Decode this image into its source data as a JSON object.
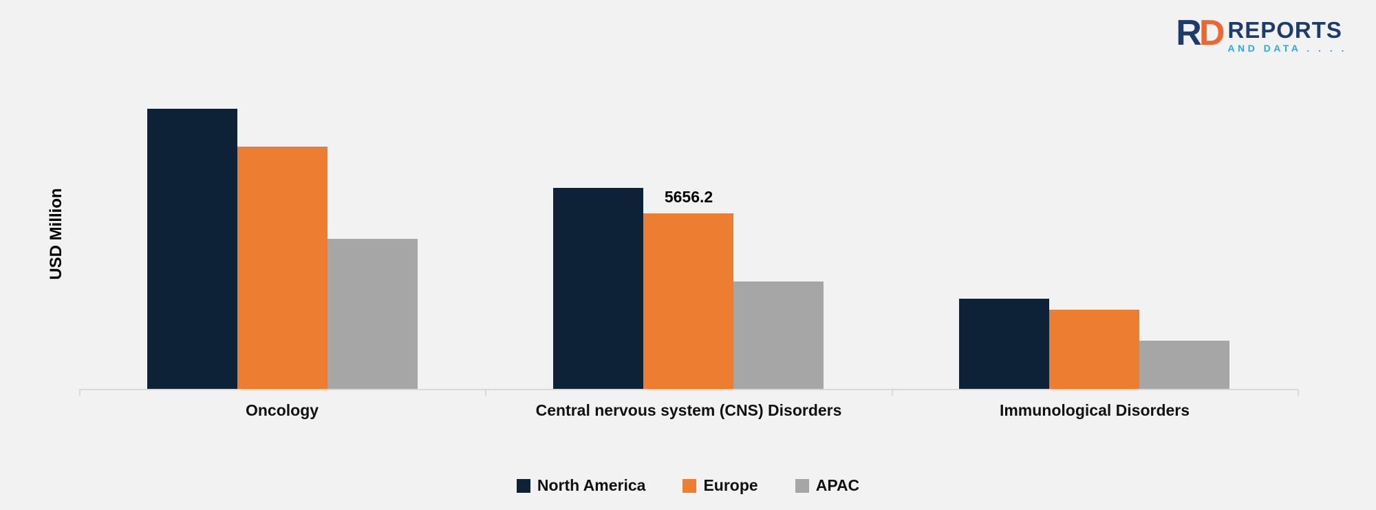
{
  "background_color": "#f2f2f2",
  "logo": {
    "mark_r": "R",
    "mark_d": "D",
    "brand_top": "REPORTS",
    "brand_bottom": "AND DATA . . . .",
    "navy": "#1b3c6d",
    "orange": "#f1662a",
    "light_blue": "#2aabe2"
  },
  "chart_data": {
    "type": "bar",
    "title": "",
    "xlabel": "",
    "ylabel": "USD Million",
    "ylim": [
      0,
      10000
    ],
    "grid": false,
    "legend_position": "bottom",
    "categories": [
      "Oncology",
      "Central nervous system (CNS) Disorders",
      "Immunological Disorders"
    ],
    "series": [
      {
        "name": "North America",
        "color": "#0d2137",
        "values": [
          9020,
          6480,
          2910
        ]
      },
      {
        "name": "Europe",
        "color": "#ed7d31",
        "values": [
          7800,
          5656.2,
          2550
        ]
      },
      {
        "name": "APAC",
        "color": "#a6a6a6",
        "values": [
          4840,
          3450,
          1560
        ]
      }
    ],
    "data_labels": [
      {
        "series": "Europe",
        "category": "Central nervous system (CNS) Disorders",
        "text": "5656.2"
      }
    ],
    "axis_color": "#d9d9d9"
  }
}
